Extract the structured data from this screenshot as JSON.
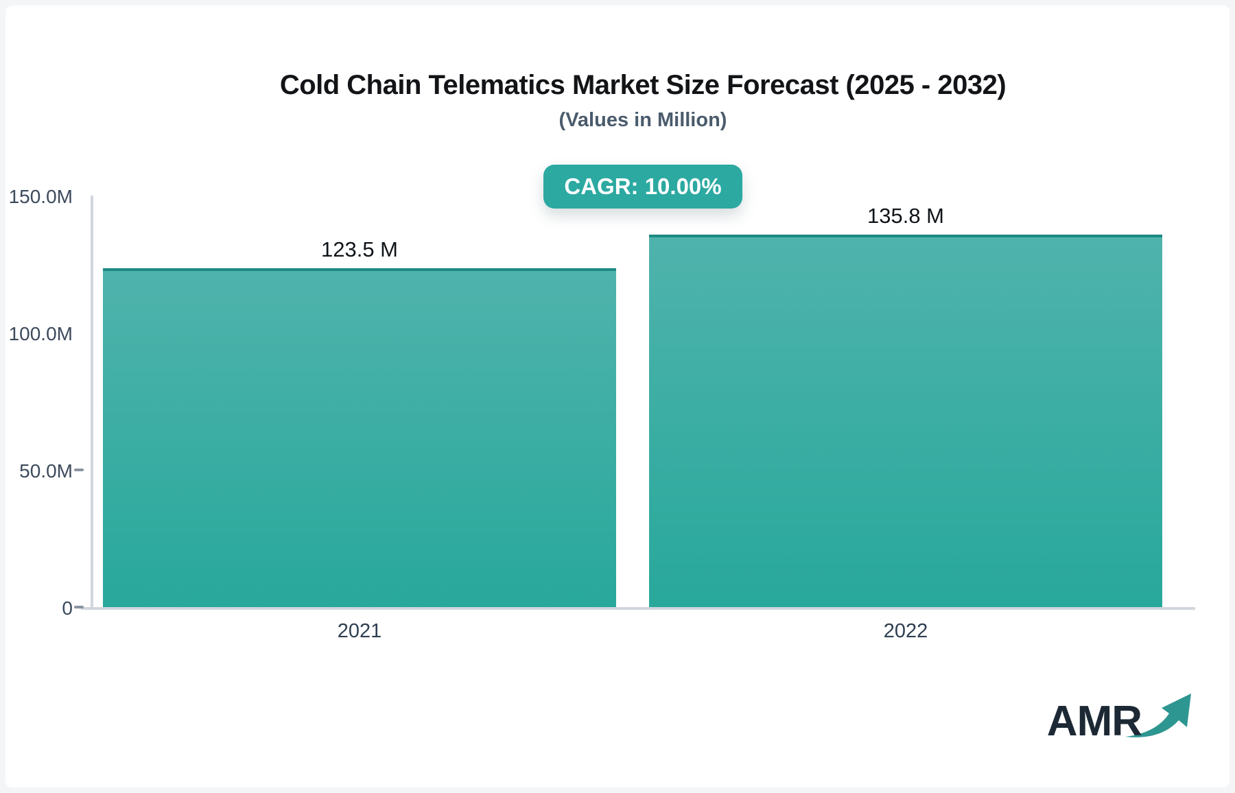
{
  "header": {
    "title": "Cold Chain Telematics Market Size Forecast (2025 - 2032)",
    "subtitle": "(Values in Million)",
    "cagr_badge": "CAGR: 10.00%"
  },
  "chart_data": {
    "type": "bar",
    "title": "Cold Chain Telematics Market Size Forecast (2025 - 2032)",
    "subtitle": "(Values in Million)",
    "cagr": "10.00%",
    "unit": "Million",
    "categories": [
      "2021",
      "2022"
    ],
    "values": [
      123.5,
      135.8
    ],
    "value_labels": [
      "123.5 M",
      "135.8 M"
    ],
    "ylim": [
      0,
      150
    ],
    "yticks": [
      {
        "value": 150,
        "label": "150.0M",
        "dash": false
      },
      {
        "value": 100,
        "label": "100.0M",
        "dash": false
      },
      {
        "value": 50,
        "label": "50.0M",
        "dash": true
      },
      {
        "value": 0,
        "label": "0",
        "dash": true
      }
    ],
    "grid": false,
    "legend": false
  },
  "branding": {
    "logo_text": "AMR"
  },
  "colors": {
    "page_background": "#f4f5f7",
    "card_background": "#ffffff",
    "title_text": "#121417",
    "subtitle_text": "#4a5b6c",
    "badge_background": "#2ca9a1",
    "axis_line": "#d2d6dd",
    "tick_dash": "#8a93a0",
    "y_label": "#3d4a5c",
    "x_label": "#2f3e52",
    "value_label": "#0f1419",
    "bar_gradient_top": "#4fb3ac",
    "bar_gradient_bottom": "#28a89b",
    "bar_top_border": "#1d8a83",
    "logo_text": "#1c2834",
    "logo_arrow": "#2e9690"
  }
}
